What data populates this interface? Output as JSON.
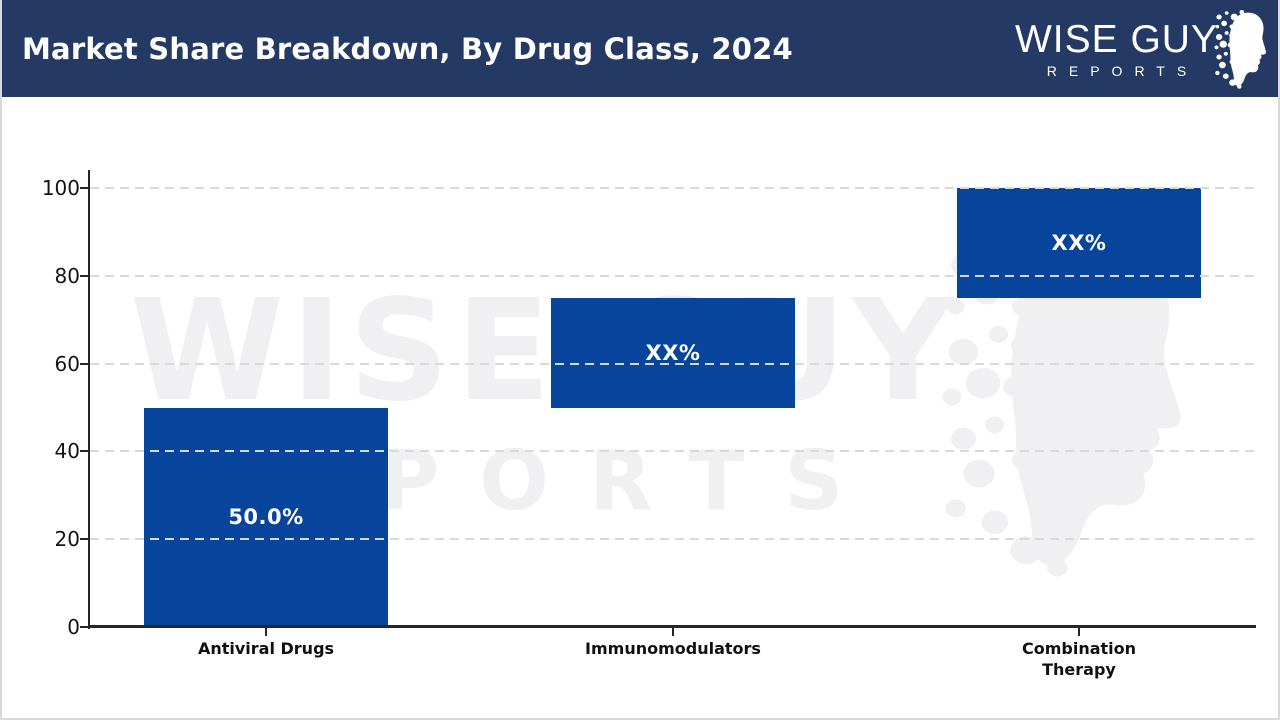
{
  "header": {
    "title": "Market Share Breakdown, By Drug Class, 2024",
    "logo": {
      "line1": "WISE GUY",
      "line2": "REPORTS"
    }
  },
  "watermark": {
    "line1": "WISE GUY",
    "line2": "REPORTS"
  },
  "colors": {
    "header_background": "#243a64",
    "bar_blue": "#07459d",
    "grid_gray": "#d9d9d9",
    "axis_dark": "#262626",
    "watermark_gray": "#f0f0f3"
  },
  "chart_data": {
    "type": "bar",
    "subtype": "floating-waterfall",
    "title": "Market Share Breakdown, By Drug Class, 2024",
    "categories": [
      "Antiviral Drugs",
      "Immunomodulators",
      "Combination Therapy"
    ],
    "tick_labels": [
      "Antiviral Drugs",
      "Immunomodulators",
      "Combination\nTherapy"
    ],
    "bars": [
      {
        "category": "Antiviral Drugs",
        "start": 0,
        "end": 50,
        "label": "50.0%"
      },
      {
        "category": "Immunomodulators",
        "start": 50,
        "end": 75,
        "label": "XX%"
      },
      {
        "category": "Combination Therapy",
        "start": 75,
        "end": 100,
        "label": "XX%"
      }
    ],
    "xlabel": "",
    "ylabel": "",
    "ylim": [
      0,
      100
    ],
    "yticks": [
      0,
      20,
      40,
      60,
      80,
      100
    ],
    "grid": "horizontal-dashed",
    "legend": "none",
    "bar_color": "#07459d",
    "bar_label_color": "#ffffff"
  }
}
